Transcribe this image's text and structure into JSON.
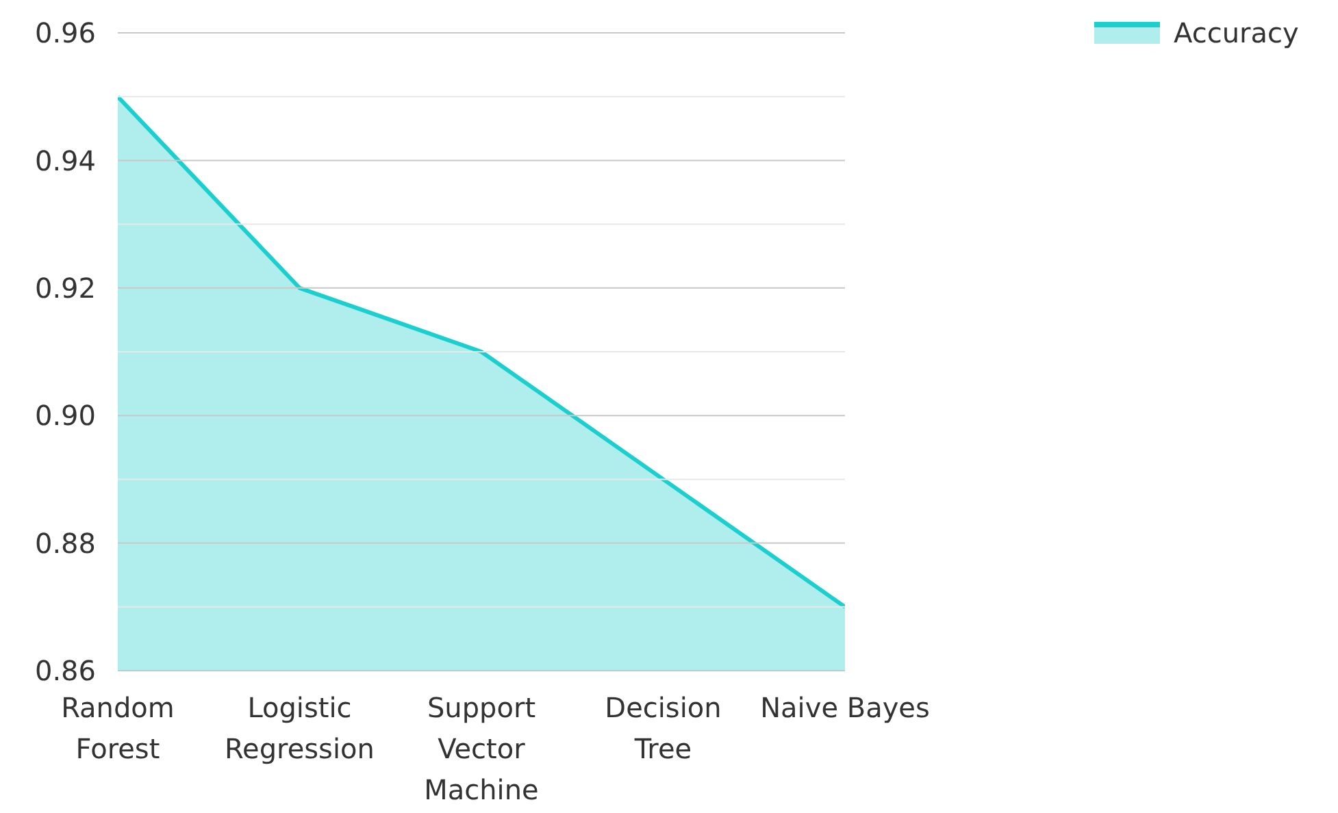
{
  "chart_data": {
    "type": "area",
    "categories": [
      "Random Forest",
      "Logistic Regression",
      "Support Vector Machine",
      "Decision Tree",
      "Naive Bayes"
    ],
    "series": [
      {
        "name": "Accuracy",
        "color": "#1ccfcf",
        "values": [
          0.95,
          0.92,
          0.91,
          0.89,
          0.87
        ]
      }
    ],
    "ylim": [
      0.86,
      0.96
    ],
    "yticks": [
      {
        "value": 0.86,
        "label": "0.86"
      },
      {
        "value": 0.88,
        "label": "0.88"
      },
      {
        "value": 0.9,
        "label": "0.90"
      },
      {
        "value": 0.92,
        "label": "0.92"
      },
      {
        "value": 0.94,
        "label": "0.94"
      },
      {
        "value": 0.96,
        "label": "0.96"
      }
    ],
    "grid": "y",
    "legend": "top right"
  }
}
